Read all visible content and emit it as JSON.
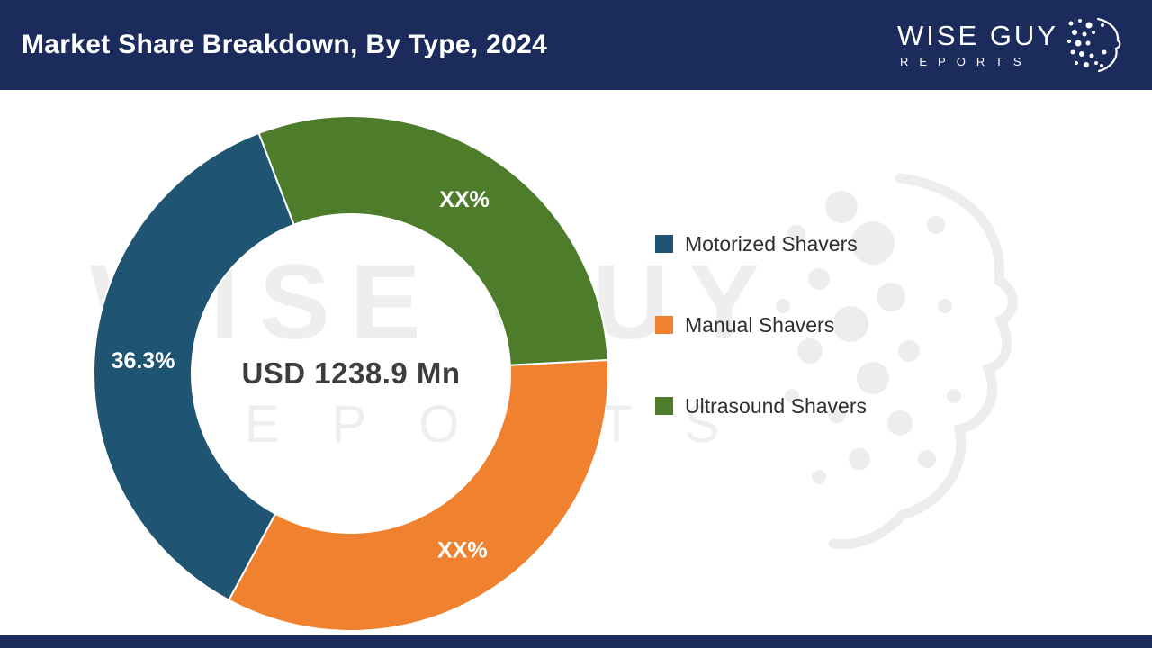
{
  "header": {
    "title": "Market Share Breakdown, By Type, 2024",
    "logo_line1": "WISE GUY",
    "logo_line2": "REPORTS"
  },
  "watermark": {
    "line1": "WISE GUY",
    "line2": "REPORTS"
  },
  "chart_data": {
    "type": "pie",
    "subtype": "donut",
    "title": "Market Share Breakdown, By Type, 2024",
    "center_label": "USD 1238.9 Mn",
    "legend_position": "right",
    "start_angle_deg": -21,
    "draw_order": [
      2,
      1,
      0
    ],
    "segments": [
      {
        "name": "Motorized Shavers",
        "label": "36.3%",
        "value": 36.3,
        "color": "#1F5572"
      },
      {
        "name": "Manual Shavers",
        "label": "XX%",
        "value": 33.7,
        "color": "#F0812F"
      },
      {
        "name": "Ultrasound Shavers",
        "label": "XX%",
        "value": 30.0,
        "color": "#4D7C2A"
      }
    ]
  },
  "colors": {
    "header_bg": "#1B2B5B",
    "footer_bg": "#1B2B5B",
    "center_text": "#3d3d3d"
  }
}
